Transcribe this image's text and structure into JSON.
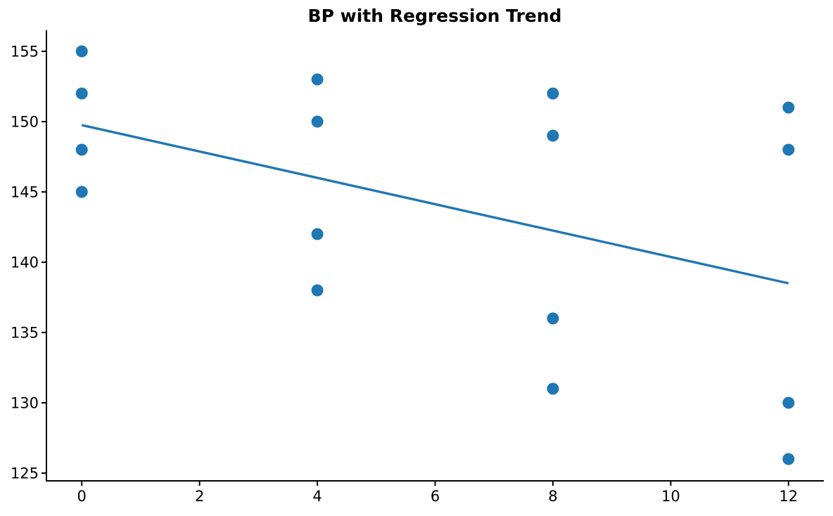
{
  "chart_data": {
    "type": "scatter",
    "title": "BP with Regression Trend",
    "xlabel": "",
    "ylabel": "",
    "x_ticks": [
      0,
      2,
      4,
      6,
      8,
      10,
      12
    ],
    "y_ticks": [
      125,
      130,
      135,
      140,
      145,
      150,
      155
    ],
    "xlim": [
      -0.6,
      12.6
    ],
    "ylim": [
      124.45,
      156.5
    ],
    "grid": false,
    "legend_position": "none",
    "points": [
      {
        "x": 0,
        "y": 155
      },
      {
        "x": 0,
        "y": 152
      },
      {
        "x": 0,
        "y": 148
      },
      {
        "x": 0,
        "y": 145
      },
      {
        "x": 4,
        "y": 153
      },
      {
        "x": 4,
        "y": 150
      },
      {
        "x": 4,
        "y": 142
      },
      {
        "x": 4,
        "y": 138
      },
      {
        "x": 8,
        "y": 152
      },
      {
        "x": 8,
        "y": 149
      },
      {
        "x": 8,
        "y": 136
      },
      {
        "x": 8,
        "y": 131
      },
      {
        "x": 12,
        "y": 151
      },
      {
        "x": 12,
        "y": 148
      },
      {
        "x": 12,
        "y": 130
      },
      {
        "x": 12,
        "y": 126
      }
    ],
    "trend_line": {
      "x_start": 0,
      "y_start": 149.75,
      "x_end": 12,
      "y_end": 138.5,
      "slope": -0.9375,
      "intercept": 149.75
    },
    "colors": {
      "points": "#1f77b4",
      "trend": "#1f77b4",
      "axis": "#000000",
      "tick_text": "#000000"
    }
  }
}
